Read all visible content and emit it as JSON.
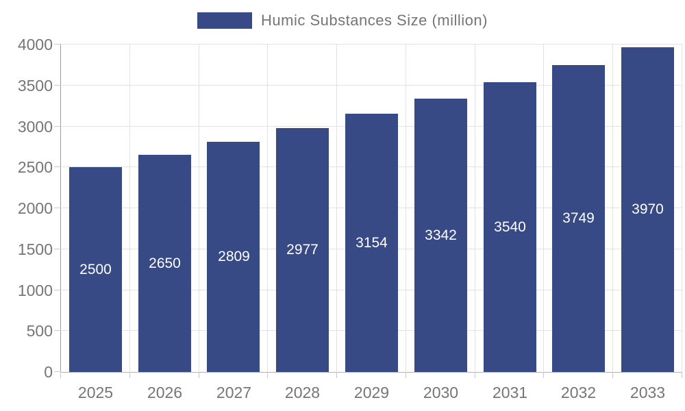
{
  "chart_data": {
    "type": "bar",
    "title": "Humic Substances Size (million)",
    "categories": [
      "2025",
      "2026",
      "2027",
      "2028",
      "2029",
      "2030",
      "2031",
      "2032",
      "2033"
    ],
    "series": [
      {
        "name": "Humic Substances Size (million)",
        "values": [
          2500,
          2650,
          2809,
          2977,
          3154,
          3342,
          3540,
          3749,
          3970
        ]
      }
    ],
    "xlabel": "",
    "ylabel": "",
    "ylim": [
      0,
      4000
    ],
    "y_ticks": [
      0,
      500,
      1000,
      1500,
      2000,
      2500,
      3000,
      3500,
      4000
    ],
    "grid": "on",
    "legend_position": "top-center",
    "bar_labels_inside": true,
    "colors": {
      "bar": "#384A85",
      "bar_value_text": "#ffffff",
      "axis_text": "#757575",
      "legend_text": "#757575",
      "gridline": "#e2e2e2",
      "y_axis_line": "#9a9a9a",
      "x_axis_line": "#b0b0b0",
      "background": "#ffffff"
    }
  },
  "legend": {
    "label": "Humic Substances Size (million)"
  }
}
